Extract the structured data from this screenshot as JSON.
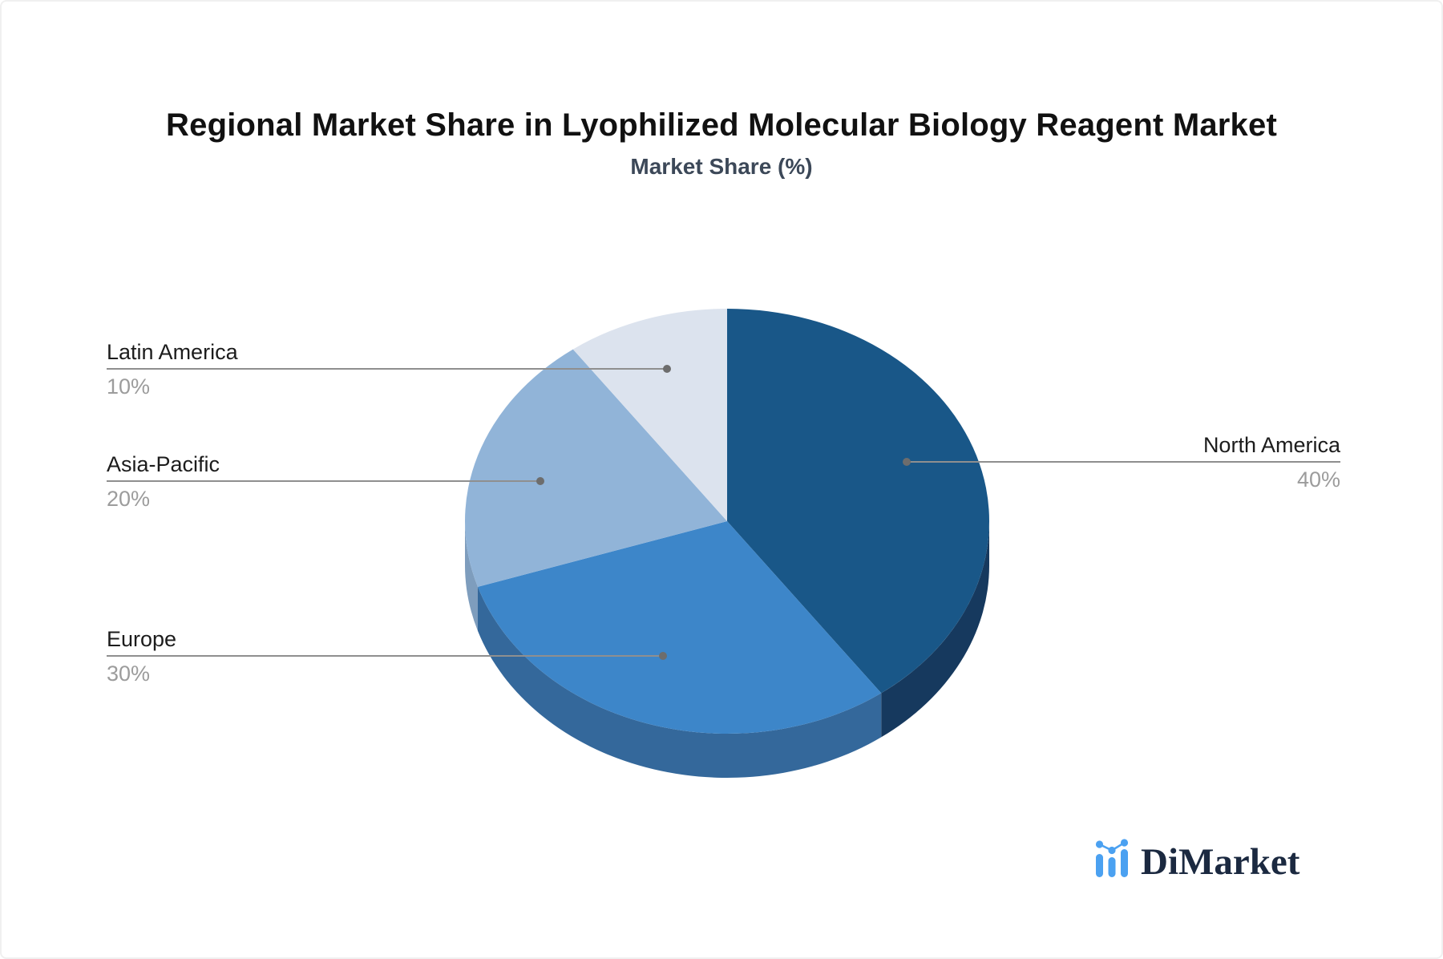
{
  "logo": {
    "text": "DiMarket",
    "icon": "bar-chart-logo-icon",
    "icon_color": "#4BA1F1",
    "text_color": "#1B2940"
  },
  "chart_data": {
    "type": "pie",
    "style": "3d",
    "title": "Regional Market Share in Lyophilized Molecular Biology Reagent Market",
    "subtitle": "Market Share (%)",
    "unit": "%",
    "categories": [
      "North America",
      "Europe",
      "Asia-Pacific",
      "Latin America"
    ],
    "values": [
      40,
      30,
      20,
      10
    ],
    "display_values": [
      "40%",
      "30%",
      "20%",
      "10%"
    ],
    "colors": [
      "#195788",
      "#3D86C9",
      "#91B4D8",
      "#DCE3EE"
    ],
    "side_colors": [
      "#16395E",
      "#34689B",
      "#7E9DBD",
      "#C3CEDF"
    ],
    "start_angle_deg": 0,
    "direction": "clockwise",
    "legend_position": "callout-lines",
    "line_color": "#8F8F8F",
    "label_color": "#1C1C1C",
    "value_color": "#9C9C9C"
  }
}
